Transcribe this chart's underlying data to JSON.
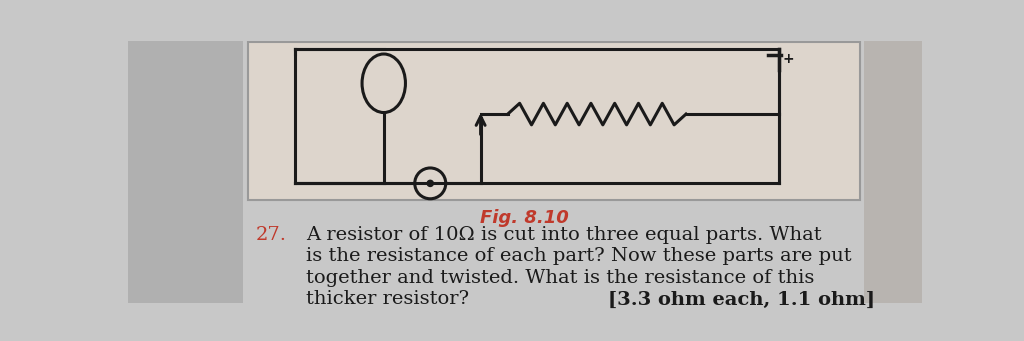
{
  "fig_label": "Fig. 8.10",
  "fig_label_color": "#c0392b",
  "question_number": "27.",
  "question_number_color": "#c0392b",
  "question_text_line1": "A resistor of 10Ω is cut into three equal parts. What",
  "question_text_line2": "is the resistance of each part? Now these parts are put",
  "question_text_line3": "together and twisted. What is the resistance of this",
  "question_text_line4": "thicker resistor?",
  "answer_text": "[3.3 ohm each, 1.1 ohm]",
  "background_color": "#c8c8c8",
  "circuit_bg": "#ddd5cc",
  "text_color": "#1a1a1a",
  "answer_color": "#1a1a1a",
  "wire_color": "#1a1a1a",
  "left_strip_color": "#b0b0b0",
  "right_strip_color": "#b8b4b0"
}
